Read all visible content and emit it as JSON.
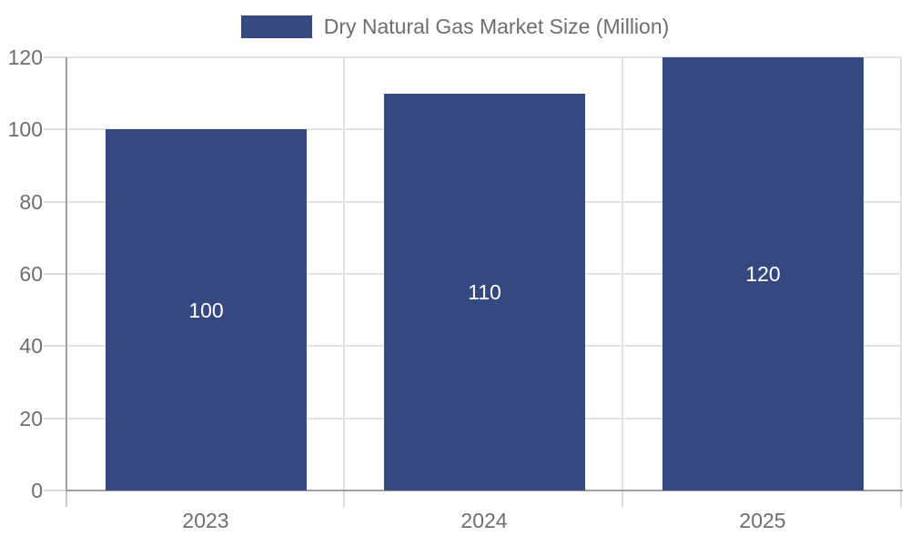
{
  "legend": {
    "label": "Dry Natural Gas Market Size (Million)",
    "swatch_color": "#364880"
  },
  "chart_data": {
    "type": "bar",
    "title": "Dry Natural Gas Market Size (Million)",
    "categories": [
      "2023",
      "2024",
      "2025"
    ],
    "values": [
      100,
      110,
      120
    ],
    "data_labels": [
      "100",
      "110",
      "120"
    ],
    "xlabel": "",
    "ylabel": "",
    "ylim": [
      0,
      120
    ],
    "yticks": [
      0,
      20,
      40,
      60,
      80,
      100,
      120
    ],
    "grid": true,
    "legend_position": "top-center",
    "colors": {
      "bar": "#364880",
      "bar_label_text": "#ffffff",
      "tick_text": "#6E6E6E",
      "axis_line": "#9E9E9E",
      "axis_ext": "#C9C9C9",
      "gridline": "#E3E3E3",
      "tick_line": "#DBDBDB",
      "background": "#ffffff"
    }
  }
}
